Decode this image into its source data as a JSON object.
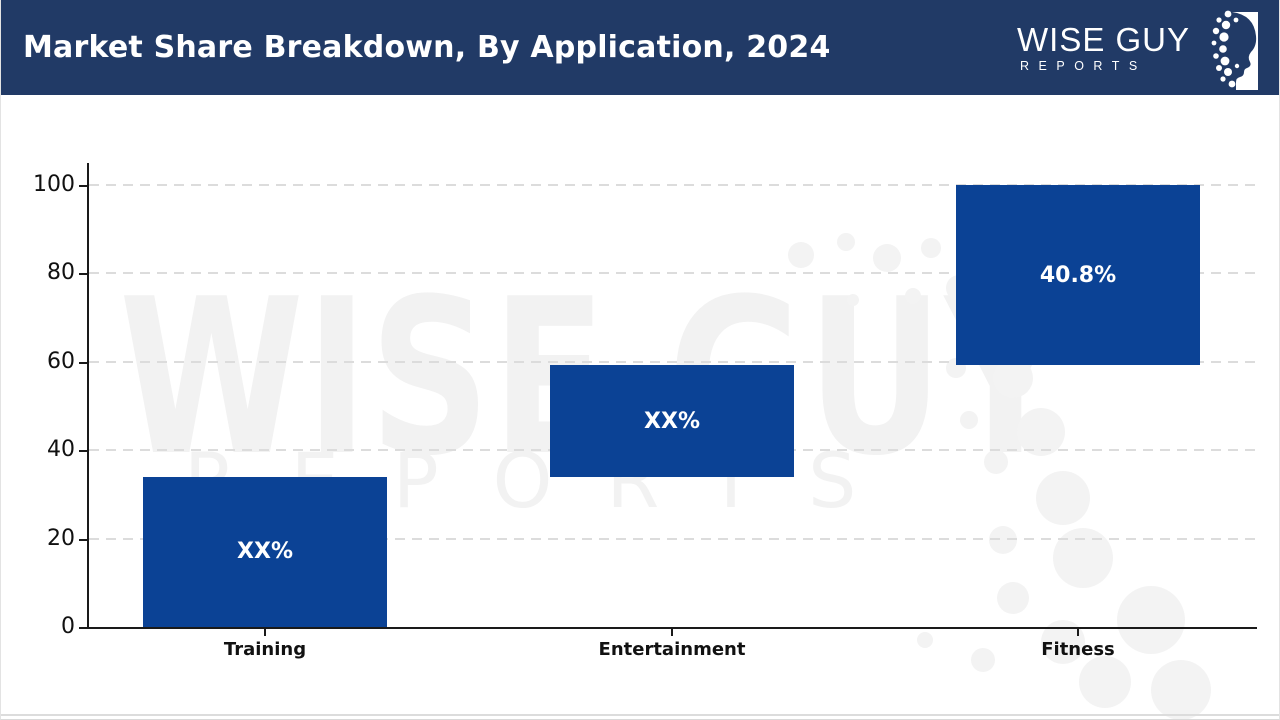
{
  "header": {
    "title": "Market Share Breakdown, By Application, 2024",
    "logo": {
      "line1": "WISE GUY",
      "line2": "REPORTS"
    }
  },
  "watermark": {
    "line1": "WISE GUY",
    "line2": "REPORTS"
  },
  "colors": {
    "header_bg": "#213a66",
    "bar": "#0b4295",
    "grid": "#dcdcdc",
    "axis": "#1a1a1a",
    "tick_label": "#111111",
    "bar_label": "#ffffff",
    "watermark": "#f2f2f2"
  },
  "chart_data": {
    "type": "bar",
    "subtype": "waterfall",
    "title": "Market Share Breakdown, By Application, 2024",
    "categories": [
      "Training",
      "Entertainment",
      "Fitness"
    ],
    "segments": [
      {
        "category": "Training",
        "start": 0,
        "end": 34,
        "value": 34,
        "label": "XX%"
      },
      {
        "category": "Entertainment",
        "start": 34,
        "end": 59.2,
        "value": 25.2,
        "label": "XX%"
      },
      {
        "category": "Fitness",
        "start": 59.2,
        "end": 100,
        "value": 40.8,
        "label": "40.8%"
      }
    ],
    "y_ticks": [
      0,
      20,
      40,
      60,
      80,
      100
    ],
    "ylim": [
      0,
      105
    ],
    "xlabel": "",
    "ylabel": "",
    "grid": "dashed-horizontal",
    "legend": "none"
  }
}
